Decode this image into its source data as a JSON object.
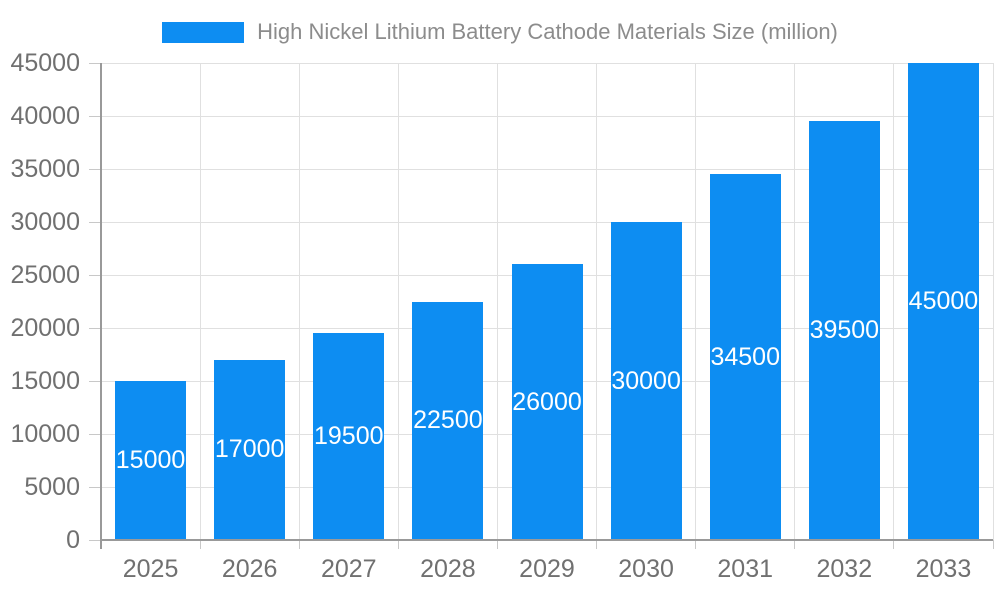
{
  "chart_data": {
    "type": "bar",
    "title": "High Nickel Lithium Battery Cathode Materials Size (million)",
    "categories": [
      "2025",
      "2026",
      "2027",
      "2028",
      "2029",
      "2030",
      "2031",
      "2032",
      "2033"
    ],
    "values": [
      15000,
      17000,
      19500,
      22500,
      26000,
      30000,
      34500,
      39500,
      45000
    ],
    "series": [
      {
        "name": "High Nickel Lithium Battery Cathode Materials Size (million)",
        "values": [
          15000,
          17000,
          19500,
          22500,
          26000,
          30000,
          34500,
          39500,
          45000
        ]
      }
    ],
    "xlabel": "",
    "ylabel": "",
    "ylim": [
      0,
      45000
    ],
    "ytick_step": 5000,
    "ytick_labels": [
      0,
      5000,
      10000,
      15000,
      20000,
      25000,
      30000,
      35000,
      40000,
      45000
    ],
    "grid": true,
    "legend_position": "top",
    "value_labels": "inside-center"
  },
  "style": {
    "bar_color": "#0d8df2",
    "bar_label_color": "#ffffff",
    "grid_color": "#e0e0e0",
    "axis_color": "#999999",
    "tick_color": "#c8c8c8",
    "tick_label_color": "#707070",
    "legend_text_color": "#8c8c8c",
    "background": "#ffffff"
  }
}
